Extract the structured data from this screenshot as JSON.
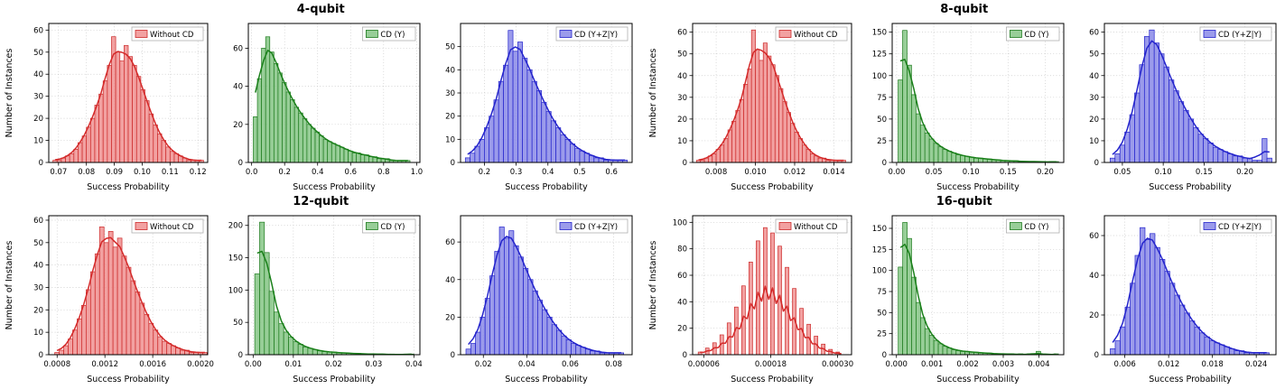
{
  "chart_data": {
    "type": "histogram",
    "xlabel": "Success Probability",
    "ylabel": "Number of Instances",
    "legend_position": "upper right",
    "grid": "dotted",
    "groups": [
      {
        "title": "4-qubit",
        "charts": [
          {
            "legend": "Without CD",
            "fill": "#f09090",
            "edge": "#cc2a2a",
            "line": "#d42a2a",
            "ylabel": "Number of Instances",
            "xlim": [
              0.0665,
              0.1235
            ],
            "ylim": [
              0,
              63
            ],
            "x_ticks": [
              0.07,
              0.08,
              0.09,
              0.1,
              0.11,
              0.12
            ],
            "x_tick_labels": [
              "0.07",
              "0.08",
              "0.09",
              "0.10",
              "0.11",
              "0.12"
            ],
            "y_ticks": [
              0,
              10,
              20,
              30,
              40,
              50,
              60
            ],
            "bins": {
              "start": 0.068,
              "width": 0.0015,
              "counts": [
                1,
                1,
                2,
                3,
                4,
                6,
                9,
                12,
                16,
                20,
                26,
                31,
                37,
                44,
                57,
                50,
                46,
                53,
                48,
                44,
                39,
                33,
                28,
                22,
                17,
                13,
                10,
                7,
                5,
                4,
                3,
                2,
                1,
                1,
                1,
                1
              ]
            }
          },
          {
            "legend": "CD (Y)",
            "fill": "#85c685",
            "edge": "#1e7b1e",
            "line": "#1a801a",
            "xlim": [
              -0.02,
              1.02
            ],
            "ylim": [
              0,
              73
            ],
            "x_ticks": [
              0.0,
              0.2,
              0.4,
              0.6,
              0.8,
              1.0
            ],
            "x_tick_labels": [
              "0.0",
              "0.2",
              "0.4",
              "0.6",
              "0.8",
              "1.0"
            ],
            "y_ticks": [
              0,
              20,
              40,
              60
            ],
            "bins": {
              "start": 0.01,
              "width": 0.025,
              "counts": [
                24,
                44,
                60,
                66,
                58,
                52,
                47,
                42,
                37,
                33,
                29,
                26,
                23,
                20,
                18,
                16,
                14,
                12,
                11,
                10,
                9,
                8,
                7,
                6,
                5,
                5,
                4,
                4,
                3,
                3,
                2,
                2,
                2,
                1,
                1,
                1,
                1,
                1
              ]
            }
          },
          {
            "legend": "CD (Y+Z|Y)",
            "fill": "#8a8ae8",
            "edge": "#2424cc",
            "line": "#2424cc",
            "xlim": [
              0.125,
              0.665
            ],
            "ylim": [
              0,
              60
            ],
            "x_ticks": [
              0.2,
              0.3,
              0.4,
              0.5,
              0.6
            ],
            "x_tick_labels": [
              "0.2",
              "0.3",
              "0.4",
              "0.5",
              "0.6"
            ],
            "y_ticks": [
              0,
              10,
              20,
              30,
              40,
              50
            ],
            "bins": {
              "start": 0.14,
              "width": 0.015,
              "counts": [
                2,
                4,
                7,
                10,
                15,
                20,
                27,
                35,
                42,
                57,
                48,
                52,
                45,
                40,
                35,
                31,
                26,
                22,
                18,
                15,
                12,
                10,
                8,
                6,
                5,
                4,
                3,
                2,
                2,
                1,
                1,
                1,
                1,
                1
              ]
            }
          }
        ]
      },
      {
        "title": "8-qubit",
        "charts": [
          {
            "legend": "Without CD",
            "fill": "#f09090",
            "edge": "#cc2a2a",
            "line": "#d42a2a",
            "ylabel": "Number of Instances",
            "xlim": [
              0.0068,
              0.0149
            ],
            "ylim": [
              0,
              64
            ],
            "x_ticks": [
              0.008,
              0.01,
              0.012,
              0.014
            ],
            "x_tick_labels": [
              "0.008",
              "0.010",
              "0.012",
              "0.014"
            ],
            "y_ticks": [
              0,
              10,
              20,
              30,
              40,
              50,
              60
            ],
            "bins": {
              "start": 0.007,
              "width": 0.0002,
              "counts": [
                1,
                1,
                2,
                3,
                4,
                6,
                8,
                11,
                15,
                19,
                24,
                29,
                36,
                43,
                61,
                52,
                47,
                55,
                49,
                45,
                40,
                34,
                28,
                23,
                18,
                14,
                11,
                8,
                6,
                4,
                3,
                2,
                2,
                1,
                1,
                1,
                1,
                1
              ]
            }
          },
          {
            "legend": "CD (Y)",
            "fill": "#85c685",
            "edge": "#1e7b1e",
            "line": "#1a801a",
            "xlim": [
              -0.006,
              0.225
            ],
            "ylim": [
              0,
              160
            ],
            "x_ticks": [
              0.0,
              0.05,
              0.1,
              0.15,
              0.2
            ],
            "x_tick_labels": [
              "0.00",
              "0.05",
              "0.10",
              "0.15",
              "0.20"
            ],
            "y_ticks": [
              0,
              25,
              50,
              75,
              100,
              125,
              150
            ],
            "bins": {
              "start": 0.002,
              "width": 0.006,
              "counts": [
                95,
                152,
                112,
                78,
                56,
                43,
                34,
                27,
                22,
                18,
                15,
                13,
                11,
                9,
                8,
                7,
                6,
                5,
                5,
                4,
                4,
                3,
                3,
                2,
                2,
                2,
                2,
                1,
                1,
                1,
                1,
                1,
                1,
                0,
                1,
                1
              ]
            }
          },
          {
            "legend": "CD (Y+Z|Y)",
            "fill": "#8a8ae8",
            "edge": "#2424cc",
            "line": "#2424cc",
            "xlim": [
              0.028,
              0.238
            ],
            "ylim": [
              0,
              64
            ],
            "x_ticks": [
              0.05,
              0.1,
              0.15,
              0.2
            ],
            "x_tick_labels": [
              "0.05",
              "0.10",
              "0.15",
              "0.20"
            ],
            "y_ticks": [
              0,
              10,
              20,
              30,
              40,
              50,
              60
            ],
            "bins": {
              "start": 0.035,
              "width": 0.006,
              "counts": [
                2,
                4,
                8,
                14,
                22,
                32,
                45,
                58,
                61,
                55,
                50,
                44,
                38,
                33,
                28,
                24,
                20,
                16,
                13,
                11,
                9,
                7,
                6,
                5,
                4,
                3,
                3,
                2,
                2,
                1,
                1,
                11,
                2
              ]
            }
          }
        ]
      },
      {
        "title": "12-qubit",
        "charts": [
          {
            "legend": "Without CD",
            "fill": "#f09090",
            "edge": "#cc2a2a",
            "line": "#d42a2a",
            "ylabel": "Number of Instances",
            "xlim": [
              0.00073,
              0.00206
            ],
            "ylim": [
              0,
              62
            ],
            "x_ticks": [
              0.0008,
              0.0012,
              0.0016,
              0.002
            ],
            "x_tick_labels": [
              "0.0008",
              "0.0012",
              "0.0016",
              "0.0020"
            ],
            "y_ticks": [
              0,
              10,
              20,
              30,
              40,
              50,
              60
            ],
            "bins": {
              "start": 0.00078,
              "width": 3.75e-05,
              "counts": [
                1,
                2,
                4,
                7,
                11,
                16,
                22,
                29,
                37,
                45,
                57,
                50,
                55,
                48,
                52,
                44,
                39,
                33,
                28,
                23,
                18,
                14,
                11,
                8,
                6,
                5,
                4,
                3,
                2,
                2,
                1,
                1,
                1,
                1
              ]
            }
          },
          {
            "legend": "CD (Y)",
            "fill": "#85c685",
            "edge": "#1e7b1e",
            "line": "#1a801a",
            "xlim": [
              -0.0012,
              0.0415
            ],
            "ylim": [
              0,
              215
            ],
            "x_ticks": [
              0.0,
              0.01,
              0.02,
              0.03,
              0.04
            ],
            "x_tick_labels": [
              "0.00",
              "0.01",
              "0.02",
              "0.03",
              "0.04"
            ],
            "y_ticks": [
              0,
              50,
              100,
              150,
              200
            ],
            "bins": {
              "start": 0.0004,
              "width": 0.0012,
              "counts": [
                125,
                205,
                158,
                98,
                66,
                48,
                35,
                27,
                20,
                16,
                12,
                10,
                8,
                6,
                5,
                4,
                4,
                3,
                3,
                2,
                2,
                2,
                1,
                1,
                1,
                1,
                1,
                0,
                1,
                0,
                0,
                1,
                1
              ]
            }
          },
          {
            "legend": "CD (Y+Z|Y)",
            "fill": "#8a8ae8",
            "edge": "#2424cc",
            "line": "#2424cc",
            "xlim": [
              0.0095,
              0.0885
            ],
            "ylim": [
              0,
              74
            ],
            "x_ticks": [
              0.02,
              0.04,
              0.06,
              0.08
            ],
            "x_tick_labels": [
              "0.02",
              "0.04",
              "0.06",
              "0.08"
            ],
            "y_ticks": [
              0,
              20,
              40,
              60
            ],
            "bins": {
              "start": 0.012,
              "width": 0.0022,
              "counts": [
                3,
                6,
                12,
                20,
                30,
                42,
                55,
                68,
                62,
                66,
                58,
                52,
                46,
                40,
                34,
                29,
                24,
                20,
                16,
                13,
                10,
                8,
                6,
                5,
                4,
                3,
                2,
                2,
                1,
                1,
                1,
                1,
                1
              ]
            }
          }
        ]
      },
      {
        "title": "16-qubit",
        "charts": [
          {
            "legend": "Without CD",
            "fill": "#f09090",
            "edge": "#cc2a2a",
            "line": "#d42a2a",
            "ylabel": "Number of Instances",
            "xlim": [
              4e-05,
              0.000325
            ],
            "ylim": [
              0,
              105
            ],
            "x_ticks": [
              6e-05,
              0.00018,
              0.0003
            ],
            "x_tick_labels": [
              "0.00006",
              "0.00018",
              "0.00030"
            ],
            "y_ticks": [
              0,
              20,
              40,
              60,
              80,
              100
            ],
            "bins": {
              "start": 5e-05,
              "width": 6.5e-06,
              "counts": [
                2,
                0,
                5,
                0,
                9,
                0,
                15,
                0,
                24,
                0,
                36,
                0,
                52,
                0,
                70,
                0,
                86,
                0,
                96,
                0,
                92,
                0,
                82,
                0,
                66,
                0,
                50,
                0,
                35,
                0,
                23,
                0,
                14,
                0,
                8,
                0,
                4,
                0,
                2,
                0
              ]
            }
          },
          {
            "legend": "CD (Y)",
            "fill": "#85c685",
            "edge": "#1e7b1e",
            "line": "#1a801a",
            "xlim": [
              -0.00012,
              0.0047
            ],
            "ylim": [
              0,
              165
            ],
            "x_ticks": [
              0.0,
              0.001,
              0.002,
              0.003,
              0.004
            ],
            "x_tick_labels": [
              "0.000",
              "0.001",
              "0.002",
              "0.003",
              "0.004"
            ],
            "y_ticks": [
              0,
              25,
              50,
              75,
              100,
              125,
              150
            ],
            "bins": {
              "start": 5e-05,
              "width": 0.000125,
              "counts": [
                104,
                157,
                138,
                92,
                62,
                44,
                31,
                23,
                17,
                13,
                10,
                8,
                6,
                5,
                4,
                4,
                3,
                3,
                2,
                2,
                2,
                1,
                1,
                1,
                1,
                1,
                0,
                1,
                0,
                1,
                0,
                4,
                0,
                0,
                0,
                1
              ]
            }
          },
          {
            "legend": "CD (Y+Z|Y)",
            "fill": "#8a8ae8",
            "edge": "#2424cc",
            "line": "#2424cc",
            "xlim": [
              0.0032,
              0.0267
            ],
            "ylim": [
              0,
              70
            ],
            "x_ticks": [
              0.006,
              0.012,
              0.018,
              0.024
            ],
            "x_tick_labels": [
              "0.006",
              "0.012",
              "0.018",
              "0.024"
            ],
            "y_ticks": [
              0,
              20,
              40,
              60
            ],
            "bins": {
              "start": 0.004,
              "width": 0.00068,
              "counts": [
                3,
                7,
                14,
                24,
                36,
                50,
                64,
                58,
                61,
                54,
                48,
                42,
                36,
                30,
                25,
                21,
                17,
                14,
                11,
                9,
                7,
                6,
                5,
                4,
                3,
                2,
                2,
                1,
                1,
                1,
                1,
                1
              ]
            }
          }
        ]
      }
    ]
  }
}
